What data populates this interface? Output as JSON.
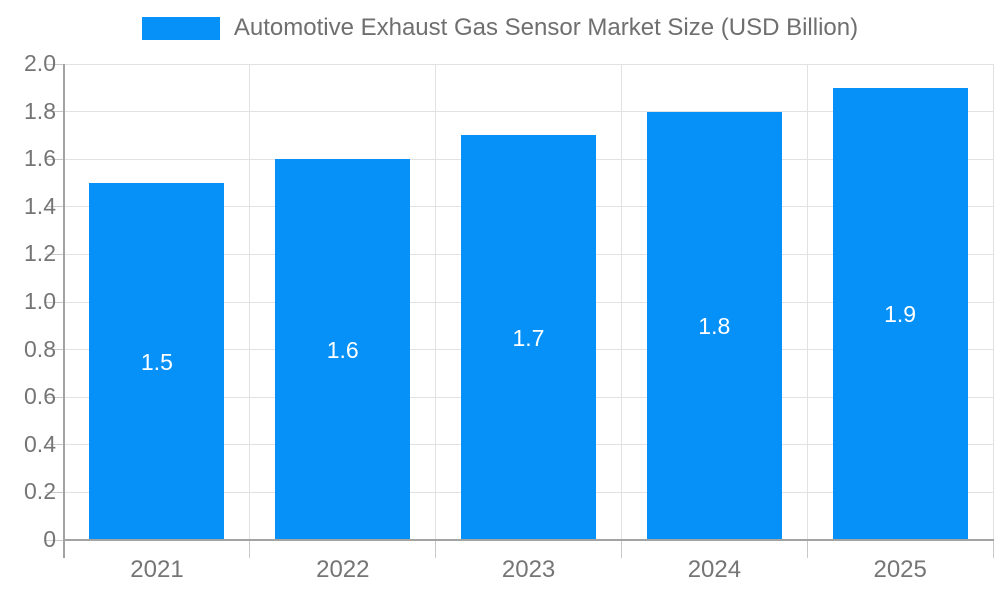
{
  "chart_data": {
    "type": "bar",
    "title": "Automotive Exhaust Gas Sensor Market Size (USD Billion)",
    "legend": [
      "Automotive Exhaust Gas Sensor Market Size (USD Billion)"
    ],
    "legend_position": "top-center",
    "categories": [
      "2021",
      "2022",
      "2023",
      "2024",
      "2025"
    ],
    "values": [
      1.5,
      1.6,
      1.7,
      1.8,
      1.9
    ],
    "value_labels": [
      "1.5",
      "1.6",
      "1.7",
      "1.8",
      "1.9"
    ],
    "xlabel": "",
    "ylabel": "",
    "ylim": [
      0,
      2.0
    ],
    "ytick_step": 0.2,
    "ytick_labels": [
      "0",
      "0.2",
      "0.4",
      "0.6",
      "0.8",
      "1.0",
      "1.2",
      "1.4",
      "1.6",
      "1.8",
      "2.0"
    ],
    "grid": true
  },
  "colors": {
    "bar": "#0591f8",
    "value_label": "#ffffff",
    "grid_line": "#e2e2e2",
    "axis_line": "#a3a3a3",
    "tick": "#c8c8c8",
    "text": "#757575",
    "background": "#ffffff"
  }
}
